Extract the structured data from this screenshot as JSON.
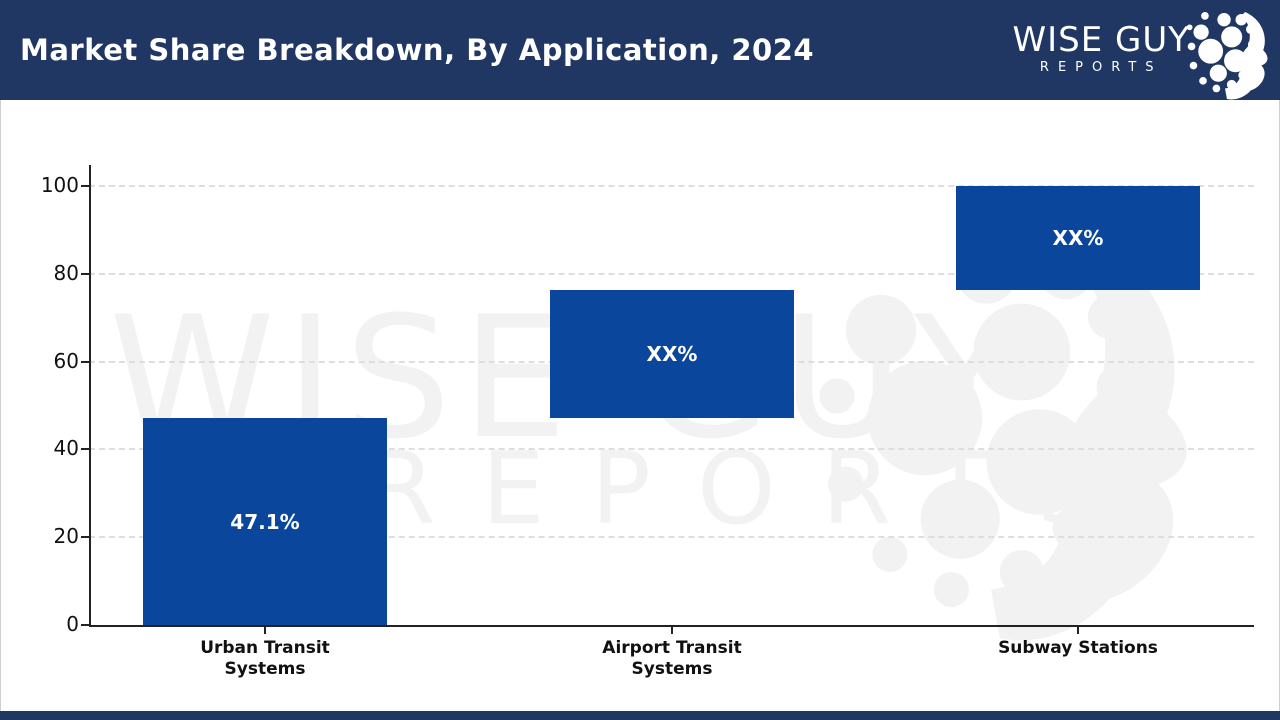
{
  "header": {
    "title": "Market Share Breakdown, By Application, 2024",
    "bg_color": "#203663",
    "logo": {
      "line1": "WISE GUY",
      "line2": "REPORTS"
    }
  },
  "watermark": {
    "line1": "WISE GUY",
    "line2": "REPORTS"
  },
  "chart_data": {
    "type": "bar",
    "subtype": "waterfall-breakdown",
    "title": "Market Share Breakdown, By Application, 2024",
    "categories": [
      "Urban Transit Systems",
      "Airport Transit Systems",
      "Subway Stations"
    ],
    "categories_display": [
      [
        "Urban Transit",
        "Systems"
      ],
      [
        "Airport Transit",
        "Systems"
      ],
      [
        "Subway Stations"
      ]
    ],
    "series": [
      {
        "name": "Market Share (%)",
        "segments": [
          {
            "category": "Urban Transit Systems",
            "start": 0,
            "end": 47.1,
            "label": "47.1%"
          },
          {
            "category": "Airport Transit Systems",
            "start": 47.1,
            "end": 76.2,
            "label": "XX%"
          },
          {
            "category": "Subway Stations",
            "start": 76.2,
            "end": 100,
            "label": "XX%"
          }
        ]
      }
    ],
    "xlabel": "",
    "ylabel": "",
    "ylim": [
      0,
      105
    ],
    "yticks": [
      "0",
      "20",
      "40",
      "60",
      "80",
      "100"
    ],
    "ytick_values": [
      0,
      20,
      40,
      60,
      80,
      100
    ],
    "grid": "horizontal dashed",
    "legend": "none",
    "bar_color": "#0a469b",
    "bar_label_color": "#ffffff",
    "axis_color": "#222222",
    "gridline_color": "#dedede"
  }
}
